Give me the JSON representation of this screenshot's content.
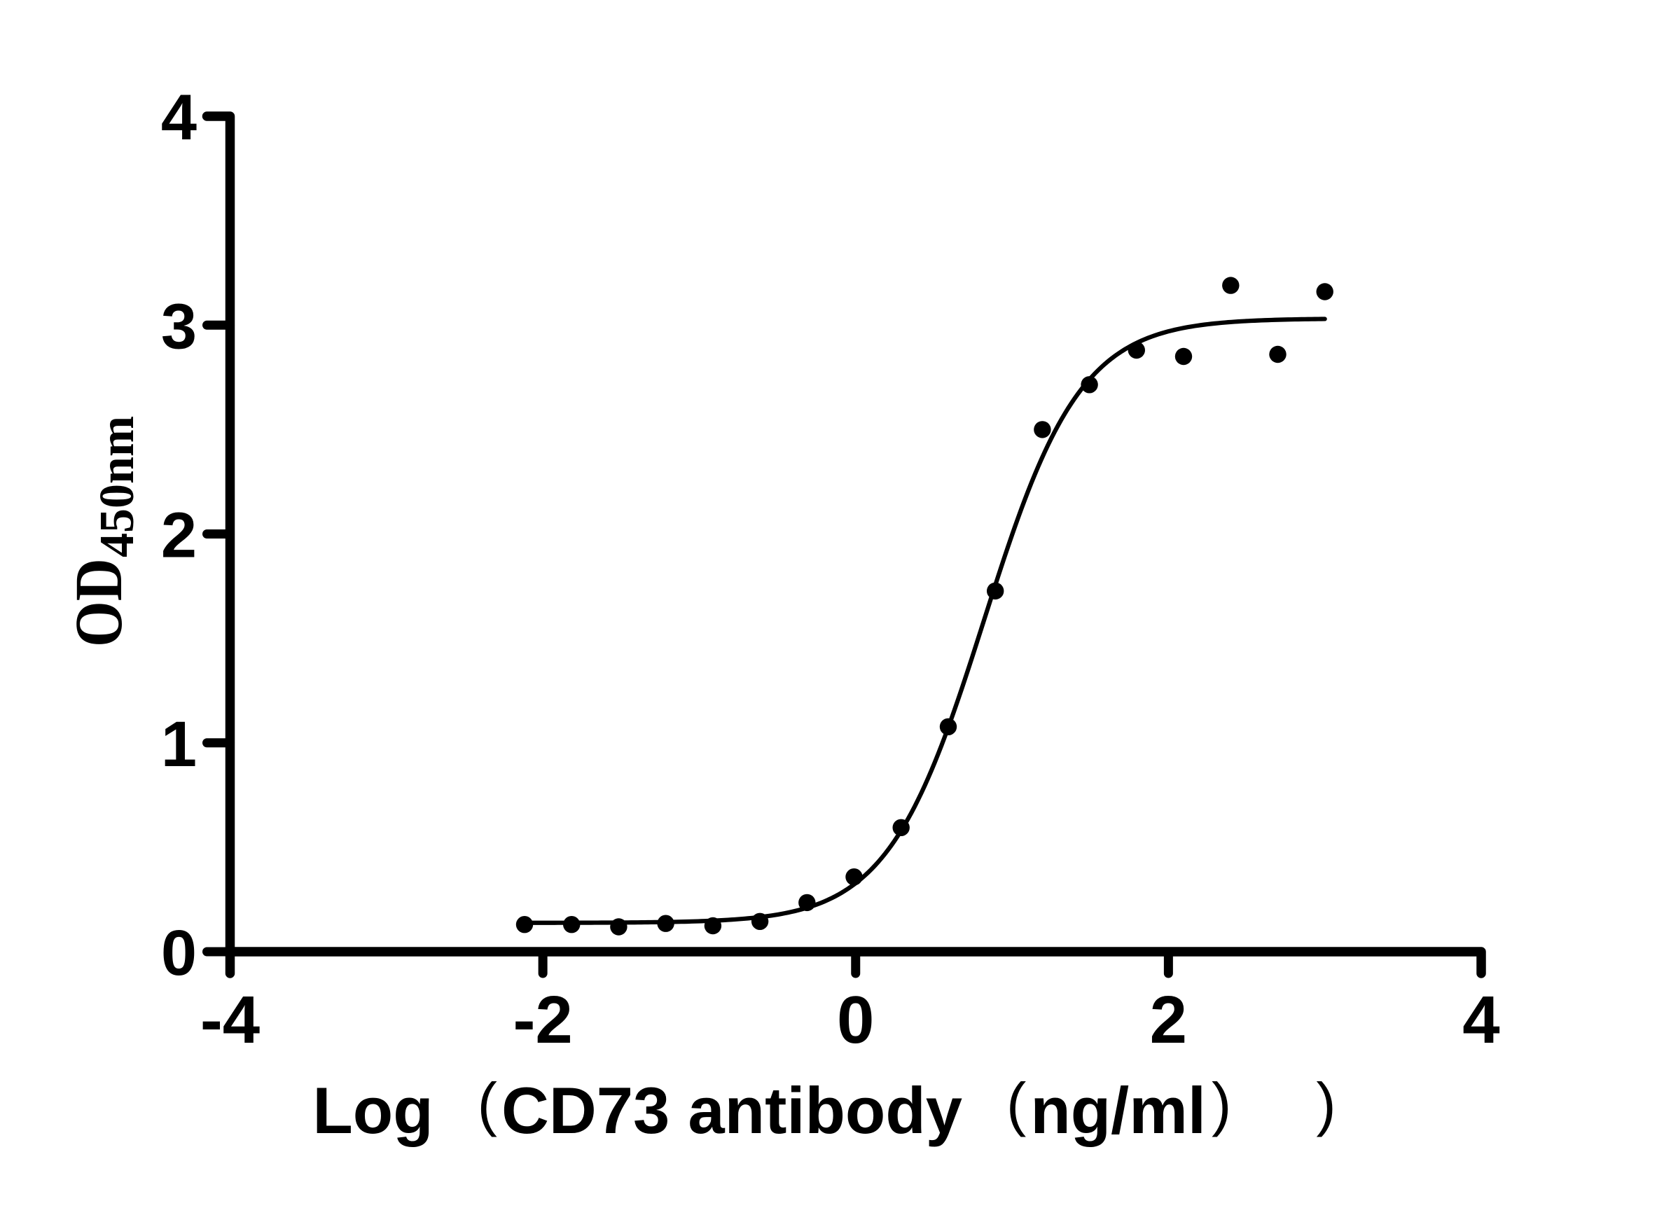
{
  "chart_data": {
    "type": "scatter",
    "title": "",
    "xlabel": "Log（CD73 antibody（ng/ml））",
    "ylabel": "OD450nm",
    "ylabel_main": "OD",
    "ylabel_sub": "450nm",
    "xlim": [
      -4,
      4
    ],
    "ylim": [
      0,
      4
    ],
    "x_ticks": [
      -4,
      -2,
      0,
      2,
      4
    ],
    "y_ticks": [
      0,
      1,
      2,
      3,
      4
    ],
    "x_tick_labels": [
      "-4",
      "-2",
      "0",
      "2",
      "4"
    ],
    "y_tick_labels": [
      "0",
      "1",
      "2",
      "3",
      "4"
    ],
    "grid": false,
    "legend": null,
    "series": [
      {
        "name": "CD73 antibody",
        "marker": {
          "shape": "circle",
          "color": "#000000"
        },
        "points": [
          {
            "x": -2.117,
            "y": 0.13
          },
          {
            "x": -1.816,
            "y": 0.13
          },
          {
            "x": -1.515,
            "y": 0.119
          },
          {
            "x": -1.214,
            "y": 0.135
          },
          {
            "x": -0.913,
            "y": 0.124
          },
          {
            "x": -0.612,
            "y": 0.145
          },
          {
            "x": -0.311,
            "y": 0.235
          },
          {
            "x": -0.01,
            "y": 0.358
          },
          {
            "x": 0.291,
            "y": 0.594
          },
          {
            "x": 0.592,
            "y": 1.077
          },
          {
            "x": 0.893,
            "y": 1.727
          },
          {
            "x": 1.194,
            "y": 2.5
          },
          {
            "x": 1.495,
            "y": 2.715
          },
          {
            "x": 1.796,
            "y": 2.88
          },
          {
            "x": 2.097,
            "y": 2.85
          },
          {
            "x": 2.398,
            "y": 3.19
          },
          {
            "x": 2.699,
            "y": 2.86
          },
          {
            "x": 3.0,
            "y": 3.16
          }
        ]
      }
    ],
    "curve_fit": {
      "model": "4PL",
      "bottom": 0.138,
      "top": 3.032,
      "logEC50": 0.82,
      "hillslope": 1.407,
      "x_start": -2.117,
      "x_end": 3.0
    },
    "colors": {
      "foreground": "#000000",
      "background": "#ffffff"
    }
  }
}
